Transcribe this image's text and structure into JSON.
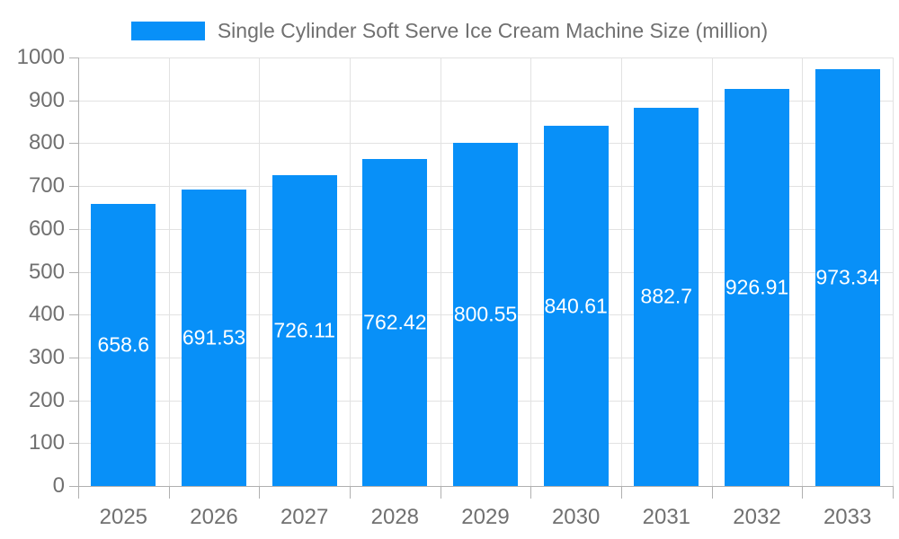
{
  "chart_data": {
    "type": "bar",
    "title": "Single Cylinder Soft Serve Ice Cream Machine Size (million)",
    "legend_position": "top",
    "categories": [
      "2025",
      "2026",
      "2027",
      "2028",
      "2029",
      "2030",
      "2031",
      "2032",
      "2033"
    ],
    "values": [
      658.6,
      691.53,
      726.11,
      762.42,
      800.55,
      840.61,
      882.7,
      926.91,
      973.34
    ],
    "value_labels": [
      "658.6",
      "691.53",
      "726.11",
      "762.42",
      "800.55",
      "840.61",
      "882.7",
      "926.91",
      "973.34"
    ],
    "xlabel": "",
    "ylabel": "",
    "ylim": [
      0,
      1000
    ],
    "yticks": [
      0,
      100,
      200,
      300,
      400,
      500,
      600,
      700,
      800,
      900,
      1000
    ],
    "grid": true,
    "colors": {
      "bar": "#0890f8",
      "grid": "#e2e2e2",
      "axis": "#b0b0b0",
      "tick_label": "#707070",
      "legend_label": "#707070",
      "value_label": "#ffffff",
      "background": "#ffffff"
    }
  }
}
